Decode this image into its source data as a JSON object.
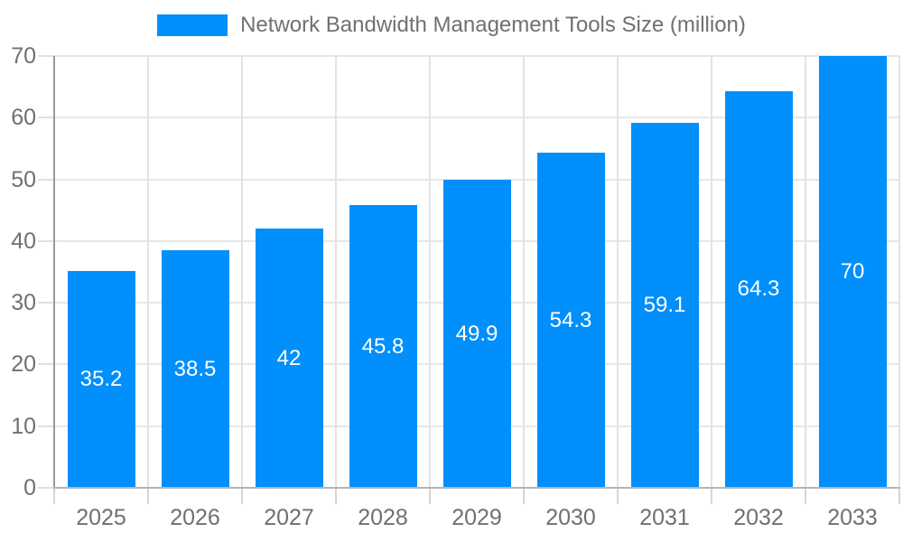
{
  "chart_data": {
    "type": "bar",
    "title": "Network Bandwidth Management Tools Size (million)",
    "categories": [
      "2025",
      "2026",
      "2027",
      "2028",
      "2029",
      "2030",
      "2031",
      "2032",
      "2033"
    ],
    "values": [
      35.2,
      38.5,
      42,
      45.8,
      49.9,
      54.3,
      59.1,
      64.3,
      70
    ],
    "value_labels": [
      "35.2",
      "38.5",
      "42",
      "45.8",
      "49.9",
      "54.3",
      "59.1",
      "64.3",
      "70"
    ],
    "xlabel": "",
    "ylabel": "",
    "ylim": [
      0,
      70
    ],
    "yticks": [
      0,
      10,
      20,
      30,
      40,
      50,
      60,
      70
    ],
    "grid": "on",
    "legend_position": "top",
    "colors": {
      "bar": "#008FFB",
      "value_label": "#ffffff",
      "axis_text": "#707070",
      "grid_line": "#e7e7e7",
      "y_axis_line": "#9b9b9b",
      "x_axis_line": "#b5b5b5"
    }
  },
  "legend": {
    "label": "Network Bandwidth Management Tools Size (million)"
  }
}
